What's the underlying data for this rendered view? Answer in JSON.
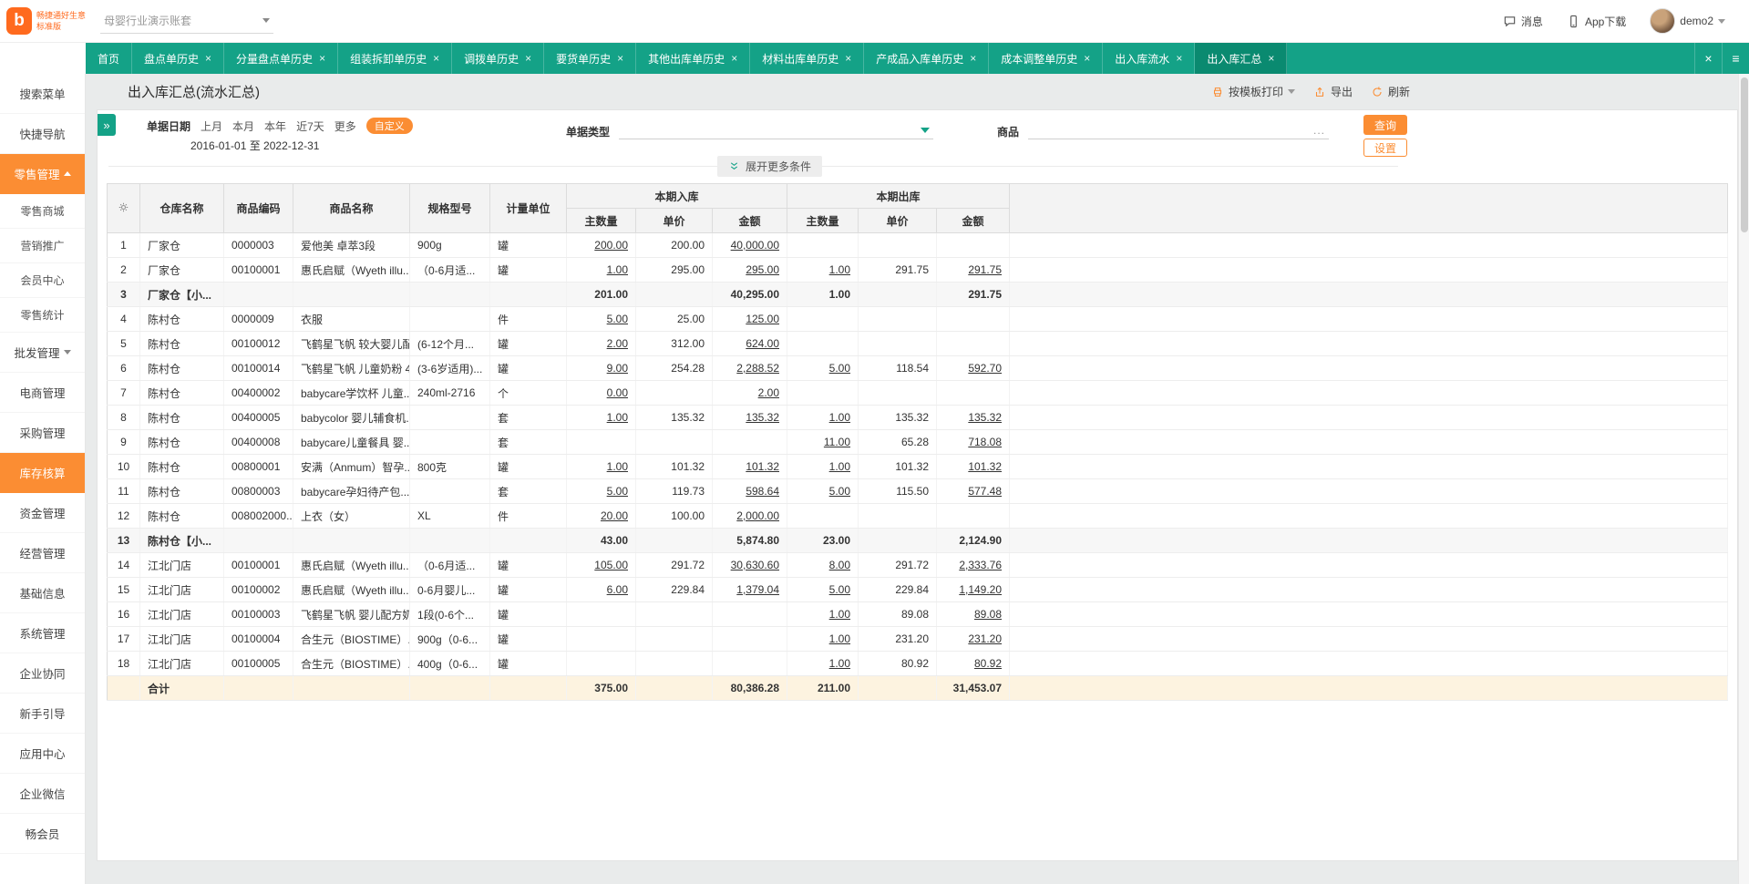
{
  "colors": {
    "brand_teal": "#14a287",
    "tab_active": "#0a8a70",
    "accent_orange": "#fb8d33"
  },
  "topbar": {
    "brand": {
      "name": "畅捷通好生意",
      "edition": "标准版"
    },
    "account_select": {
      "value": "母婴行业演示账套"
    },
    "messages_label": "消息",
    "app_download_label": "App下载",
    "username": "demo2"
  },
  "tabbar": {
    "tabs": [
      {
        "label": "首页",
        "closable": false,
        "active": false
      },
      {
        "label": "盘点单历史",
        "closable": true,
        "active": false
      },
      {
        "label": "分量盘点单历史",
        "closable": true,
        "active": false
      },
      {
        "label": "组装拆卸单历史",
        "closable": true,
        "active": false
      },
      {
        "label": "调拨单历史",
        "closable": true,
        "active": false
      },
      {
        "label": "要货单历史",
        "closable": true,
        "active": false
      },
      {
        "label": "其他出库单历史",
        "closable": true,
        "active": false
      },
      {
        "label": "材料出库单历史",
        "closable": true,
        "active": false
      },
      {
        "label": "产成品入库单历史",
        "closable": true,
        "active": false
      },
      {
        "label": "成本调整单历史",
        "closable": true,
        "active": false
      },
      {
        "label": "出入库流水",
        "closable": true,
        "active": false
      },
      {
        "label": "出入库汇总",
        "closable": true,
        "active": true
      }
    ],
    "close_all": "×",
    "tab_menu": "≡"
  },
  "sidebar": {
    "items": [
      {
        "label": "搜索菜单",
        "type": "top"
      },
      {
        "label": "快捷导航",
        "type": "top"
      },
      {
        "label": "零售管理",
        "type": "top",
        "active": true,
        "caret": "up"
      },
      {
        "label": "零售商城",
        "type": "sub"
      },
      {
        "label": "营销推广",
        "type": "sub"
      },
      {
        "label": "会员中心",
        "type": "sub"
      },
      {
        "label": "零售统计",
        "type": "sub"
      },
      {
        "label": "批发管理",
        "type": "top",
        "caret": "down"
      },
      {
        "label": "电商管理",
        "type": "top"
      },
      {
        "label": "采购管理",
        "type": "top"
      },
      {
        "label": "库存核算",
        "type": "top",
        "active": true
      },
      {
        "label": "资金管理",
        "type": "top"
      },
      {
        "label": "经营管理",
        "type": "top"
      },
      {
        "label": "基础信息",
        "type": "top"
      },
      {
        "label": "系统管理",
        "type": "top"
      },
      {
        "label": "企业协同",
        "type": "top"
      },
      {
        "label": "新手引导",
        "type": "top"
      },
      {
        "label": "应用中心",
        "type": "top"
      },
      {
        "label": "企业微信",
        "type": "top"
      },
      {
        "label": "畅会员",
        "type": "top"
      }
    ]
  },
  "page": {
    "title": "出入库汇总(流水汇总)",
    "actions": {
      "print_label": "按模板打印",
      "export_label": "导出",
      "refresh_label": "刷新"
    }
  },
  "filters": {
    "date": {
      "label": "单据日期",
      "quick_options": [
        "上月",
        "本月",
        "本年",
        "近7天",
        "更多"
      ],
      "custom_label": "自定义",
      "range": "2016-01-01 至 2022-12-31"
    },
    "doc_type": {
      "label": "单据类型",
      "value": ""
    },
    "product": {
      "label": "商品",
      "value": "",
      "more": "..."
    },
    "search_label": "查询",
    "settings_label": "设置",
    "expand_more_label": "展开更多条件"
  },
  "table": {
    "columns": {
      "warehouse": "仓库名称",
      "code": "商品编码",
      "name": "商品名称",
      "spec": "规格型号",
      "unit": "计量单位",
      "in_group": "本期入库",
      "out_group": "本期出库",
      "qty": "主数量",
      "price": "单价",
      "amount": "金额"
    },
    "rows": [
      {
        "type": "data",
        "no": "1",
        "warehouse": "厂家仓",
        "code": "0000003",
        "name": "爱他美 卓萃3段",
        "spec": "900g",
        "unit": "罐",
        "in_qty": "200.00",
        "in_price": "200.00",
        "in_amount": "40,000.00",
        "out_qty": "",
        "out_price": "",
        "out_amount": ""
      },
      {
        "type": "data",
        "no": "2",
        "warehouse": "厂家仓",
        "code": "00100001",
        "name": "惠氏启赋（Wyeth illu...",
        "spec": "（0-6月适...",
        "unit": "罐",
        "in_qty": "1.00",
        "in_price": "295.00",
        "in_amount": "295.00",
        "out_qty": "1.00",
        "out_price": "291.75",
        "out_amount": "291.75"
      },
      {
        "type": "subtotal",
        "no": "3",
        "warehouse": "厂家仓【小...",
        "code": "",
        "name": "",
        "spec": "",
        "unit": "",
        "in_qty": "201.00",
        "in_price": "",
        "in_amount": "40,295.00",
        "out_qty": "1.00",
        "out_price": "",
        "out_amount": "291.75"
      },
      {
        "type": "data",
        "no": "4",
        "warehouse": "陈村仓",
        "code": "0000009",
        "name": "衣服",
        "spec": "",
        "unit": "件",
        "in_qty": "5.00",
        "in_price": "25.00",
        "in_amount": "125.00",
        "out_qty": "",
        "out_price": "",
        "out_amount": ""
      },
      {
        "type": "data",
        "no": "5",
        "warehouse": "陈村仓",
        "code": "00100012",
        "name": "飞鹤星飞帆 较大婴儿配...",
        "spec": "(6-12个月...",
        "unit": "罐",
        "in_qty": "2.00",
        "in_price": "312.00",
        "in_amount": "624.00",
        "out_qty": "",
        "out_price": "",
        "out_amount": ""
      },
      {
        "type": "data",
        "no": "6",
        "warehouse": "陈村仓",
        "code": "00100014",
        "name": "飞鹤星飞帆 儿童奶粉 4...",
        "spec": "(3-6岁适用)...",
        "unit": "罐",
        "in_qty": "9.00",
        "in_price": "254.28",
        "in_amount": "2,288.52",
        "out_qty": "5.00",
        "out_price": "118.54",
        "out_amount": "592.70"
      },
      {
        "type": "data",
        "no": "7",
        "warehouse": "陈村仓",
        "code": "00400002",
        "name": "babycare学饮杯 儿童...",
        "spec": "240ml-2716",
        "unit": "个",
        "in_qty": "0.00",
        "in_price": "",
        "in_amount": "2.00",
        "out_qty": "",
        "out_price": "",
        "out_amount": ""
      },
      {
        "type": "data",
        "no": "8",
        "warehouse": "陈村仓",
        "code": "00400005",
        "name": "babycolor 婴儿辅食机...",
        "spec": "",
        "unit": "套",
        "in_qty": "1.00",
        "in_price": "135.32",
        "in_amount": "135.32",
        "out_qty": "1.00",
        "out_price": "135.32",
        "out_amount": "135.32"
      },
      {
        "type": "data",
        "no": "9",
        "warehouse": "陈村仓",
        "code": "00400008",
        "name": "babycare儿童餐具 婴...",
        "spec": "",
        "unit": "套",
        "in_qty": "",
        "in_price": "",
        "in_amount": "",
        "out_qty": "11.00",
        "out_price": "65.28",
        "out_amount": "718.08"
      },
      {
        "type": "data",
        "no": "10",
        "warehouse": "陈村仓",
        "code": "00800001",
        "name": "安满（Anmum）智孕...",
        "spec": "800克",
        "unit": "罐",
        "in_qty": "1.00",
        "in_price": "101.32",
        "in_amount": "101.32",
        "out_qty": "1.00",
        "out_price": "101.32",
        "out_amount": "101.32"
      },
      {
        "type": "data",
        "no": "11",
        "warehouse": "陈村仓",
        "code": "00800003",
        "name": "babycare孕妇待产包...",
        "spec": "",
        "unit": "套",
        "in_qty": "5.00",
        "in_price": "119.73",
        "in_amount": "598.64",
        "out_qty": "5.00",
        "out_price": "115.50",
        "out_amount": "577.48"
      },
      {
        "type": "data",
        "no": "12",
        "warehouse": "陈村仓",
        "code": "008002000...",
        "name": "上衣（女）",
        "spec": "XL",
        "unit": "件",
        "in_qty": "20.00",
        "in_price": "100.00",
        "in_amount": "2,000.00",
        "out_qty": "",
        "out_price": "",
        "out_amount": ""
      },
      {
        "type": "subtotal",
        "no": "13",
        "warehouse": "陈村仓【小...",
        "code": "",
        "name": "",
        "spec": "",
        "unit": "",
        "in_qty": "43.00",
        "in_price": "",
        "in_amount": "5,874.80",
        "out_qty": "23.00",
        "out_price": "",
        "out_amount": "2,124.90"
      },
      {
        "type": "data",
        "no": "14",
        "warehouse": "江北门店",
        "code": "00100001",
        "name": "惠氏启赋（Wyeth illu...",
        "spec": "（0-6月适...",
        "unit": "罐",
        "in_qty": "105.00",
        "in_price": "291.72",
        "in_amount": "30,630.60",
        "out_qty": "8.00",
        "out_price": "291.72",
        "out_amount": "2,333.76"
      },
      {
        "type": "data",
        "no": "15",
        "warehouse": "江北门店",
        "code": "00100002",
        "name": "惠氏启赋（Wyeth illu...",
        "spec": "0-6月婴儿...",
        "unit": "罐",
        "in_qty": "6.00",
        "in_price": "229.84",
        "in_amount": "1,379.04",
        "out_qty": "5.00",
        "out_price": "229.84",
        "out_amount": "1,149.20"
      },
      {
        "type": "data",
        "no": "16",
        "warehouse": "江北门店",
        "code": "00100003",
        "name": "飞鹤星飞帆 婴儿配方奶...",
        "spec": "1段(0-6个...",
        "unit": "罐",
        "in_qty": "",
        "in_price": "",
        "in_amount": "",
        "out_qty": "1.00",
        "out_price": "89.08",
        "out_amount": "89.08"
      },
      {
        "type": "data",
        "no": "17",
        "warehouse": "江北门店",
        "code": "00100004",
        "name": "合生元（BIOSTIME）...",
        "spec": "900g（0-6...",
        "unit": "罐",
        "in_qty": "",
        "in_price": "",
        "in_amount": "",
        "out_qty": "1.00",
        "out_price": "231.20",
        "out_amount": "231.20"
      },
      {
        "type": "data",
        "no": "18",
        "warehouse": "江北门店",
        "code": "00100005",
        "name": "合生元（BIOSTIME）...",
        "spec": "400g（0-6...",
        "unit": "罐",
        "in_qty": "",
        "in_price": "",
        "in_amount": "",
        "out_qty": "1.00",
        "out_price": "80.92",
        "out_amount": "80.92"
      }
    ],
    "total_row": {
      "label": "合计",
      "in_qty": "375.00",
      "in_price": "",
      "in_amount": "80,386.28",
      "out_qty": "211.00",
      "out_price": "",
      "out_amount": "31,453.07"
    }
  }
}
